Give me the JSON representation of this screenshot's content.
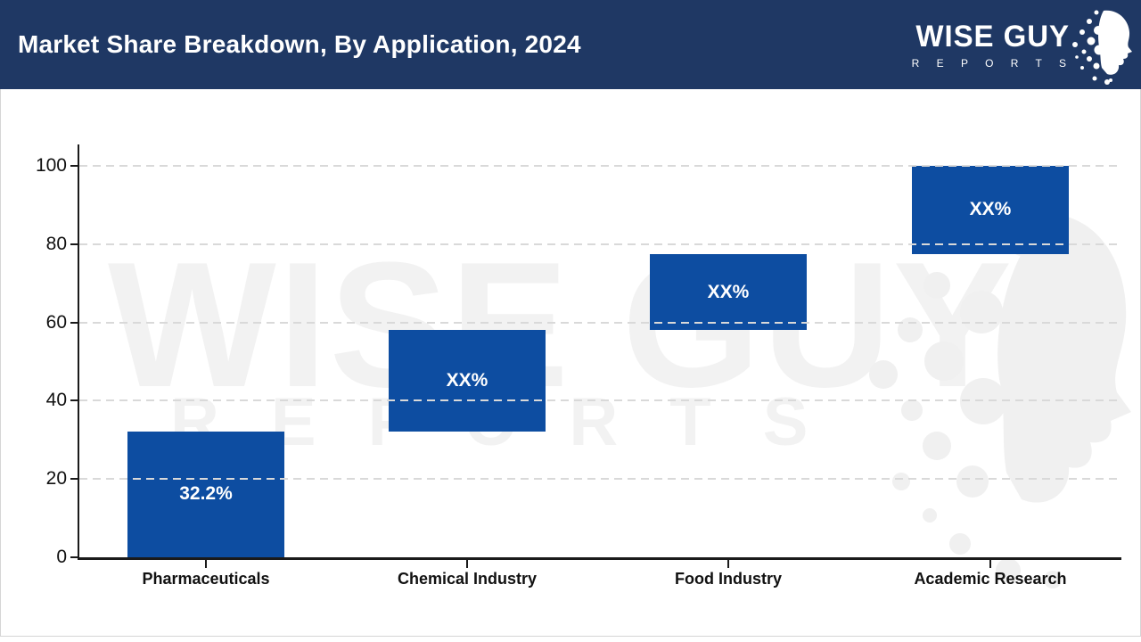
{
  "header": {
    "title": "Market Share Breakdown, By Application, 2024",
    "logo": {
      "line1": "WISE GUY",
      "line2": "R E P O R T S"
    }
  },
  "watermark": {
    "line1": "WISE GUY",
    "line2": "REPORTS"
  },
  "chart_data": {
    "type": "bar",
    "subtype": "waterfall",
    "title": "Market Share Breakdown, By Application, 2024",
    "categories": [
      "Pharmaceuticals",
      "Chemical Industry",
      "Food Industry",
      "Academic Research"
    ],
    "segments": [
      {
        "label": "Pharmaceuticals",
        "start": 0,
        "end": 32.2,
        "value_label": "32.2%"
      },
      {
        "label": "Chemical Industry",
        "start": 32.2,
        "end": 58,
        "value_label": "XX%"
      },
      {
        "label": "Food Industry",
        "start": 58,
        "end": 77.5,
        "value_label": "XX%"
      },
      {
        "label": "Academic Research",
        "start": 77.5,
        "end": 100,
        "value_label": "XX%"
      }
    ],
    "xlabel": "",
    "ylabel": "",
    "ylim": [
      0,
      100
    ],
    "yticks": [
      0,
      20,
      40,
      60,
      80,
      100
    ],
    "grid": "dashed-horizontal",
    "legend": "none"
  },
  "colors": {
    "header_bg": "#1f3864",
    "bar": "#0d4da1",
    "bar_label": "#ffffff",
    "axis": "#1a1a1a",
    "grid": "#d9d9d9",
    "watermark": "#f2f2f2"
  }
}
